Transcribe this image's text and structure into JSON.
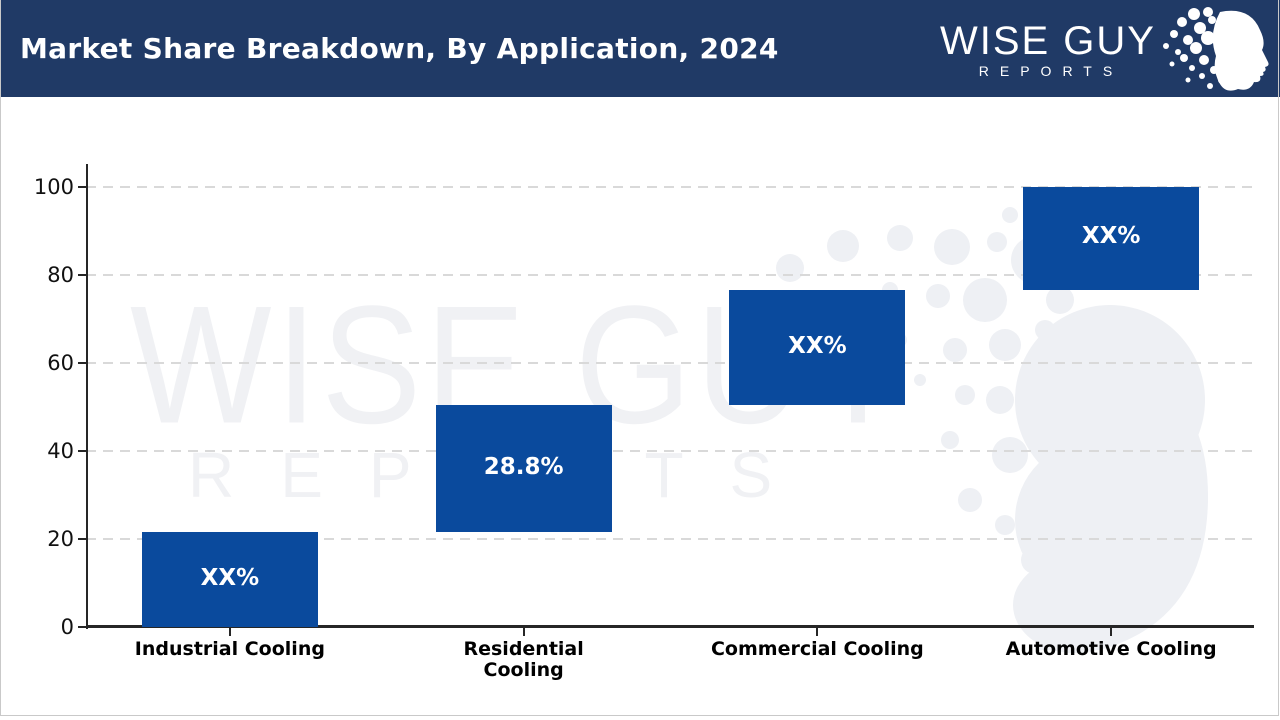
{
  "page": {
    "background": "#ffffff",
    "border_color": "#c9c9c9"
  },
  "header": {
    "title": "Market Share Breakdown, By Application, 2024",
    "background": "#203a66",
    "text_color": "#ffffff",
    "logo": {
      "name": "WISE GUY",
      "subtitle": "REPORTS"
    }
  },
  "watermark": {
    "name": "WISE GUY",
    "subtitle": "REPORTS",
    "color": "#f0f1f4"
  },
  "chart_data": {
    "type": "bar",
    "subtype": "waterfall",
    "title": "Market Share Breakdown, By Application, 2024",
    "categories": [
      "Industrial Cooling",
      "Residential\nCooling",
      "Commercial Cooling",
      "Automotive Cooling"
    ],
    "segments": [
      {
        "category": "Industrial Cooling",
        "label": "XX%",
        "start": 0,
        "end": 21.5
      },
      {
        "category": "Residential Cooling",
        "label": "28.8%",
        "start": 21.6,
        "end": 50.4
      },
      {
        "category": "Commercial Cooling",
        "label": "XX%",
        "start": 50.5,
        "end": 76.5
      },
      {
        "category": "Automotive Cooling",
        "label": "XX%",
        "start": 76.6,
        "end": 100
      }
    ],
    "ylim": [
      0,
      100
    ],
    "yticks": [
      0,
      20,
      40,
      60,
      80,
      100
    ],
    "grid": "horizontal-dashed",
    "legend": "none",
    "bar_color": "#0a4a9d",
    "bar_label_color": "#ffffff",
    "axis_color": "#262626",
    "grid_color": "#d9d9d9",
    "tick_label_color": "#111111",
    "watermark_text": "WISE GUY REPORTS"
  }
}
